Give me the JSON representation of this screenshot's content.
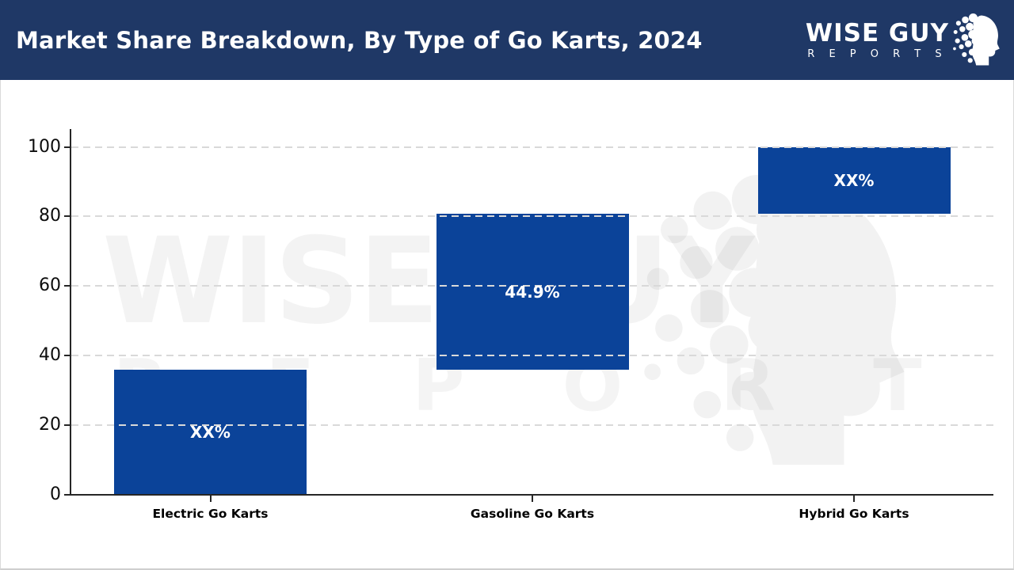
{
  "header": {
    "title": "Market Share Breakdown, By Type of Go Karts, 2024",
    "logo": {
      "line1": "WISE GUY",
      "line2": "R E P O R T S",
      "head_icon": "head-profile-dots-icon"
    }
  },
  "watermark": {
    "line1": "WISE GUY",
    "line2": "R E P O R T S"
  },
  "colors": {
    "header_bg": "#1f3866",
    "bar": "#0b4399",
    "gridline": "#d9d9d9",
    "axis": "#262626",
    "title_text": "#ffffff",
    "bar_label_text": "#ffffff",
    "tick_text": "#0d0d0d"
  },
  "chart_data": {
    "type": "bar",
    "subtype": "waterfall-stacked-percentage",
    "title": "Market Share Breakdown, By Type of Go Karts, 2024",
    "xlabel": "",
    "ylabel": "",
    "categories": [
      "Electric Go Karts",
      "Gasoline Go Karts",
      "Hybrid Go Karts"
    ],
    "bars": [
      {
        "category": "Electric Go Karts",
        "base": 0,
        "value": 35.9,
        "value_label": "XX%"
      },
      {
        "category": "Gasoline Go Karts",
        "base": 35.9,
        "value": 44.9,
        "value_label": "44.9%"
      },
      {
        "category": "Hybrid Go Karts",
        "base": 80.8,
        "value": 19.2,
        "value_label": "XX%"
      }
    ],
    "ylim": [
      0,
      105
    ],
    "yticks": [
      0,
      20,
      40,
      60,
      80,
      100
    ],
    "grid": "horizontal-dashed",
    "legend": "none"
  }
}
